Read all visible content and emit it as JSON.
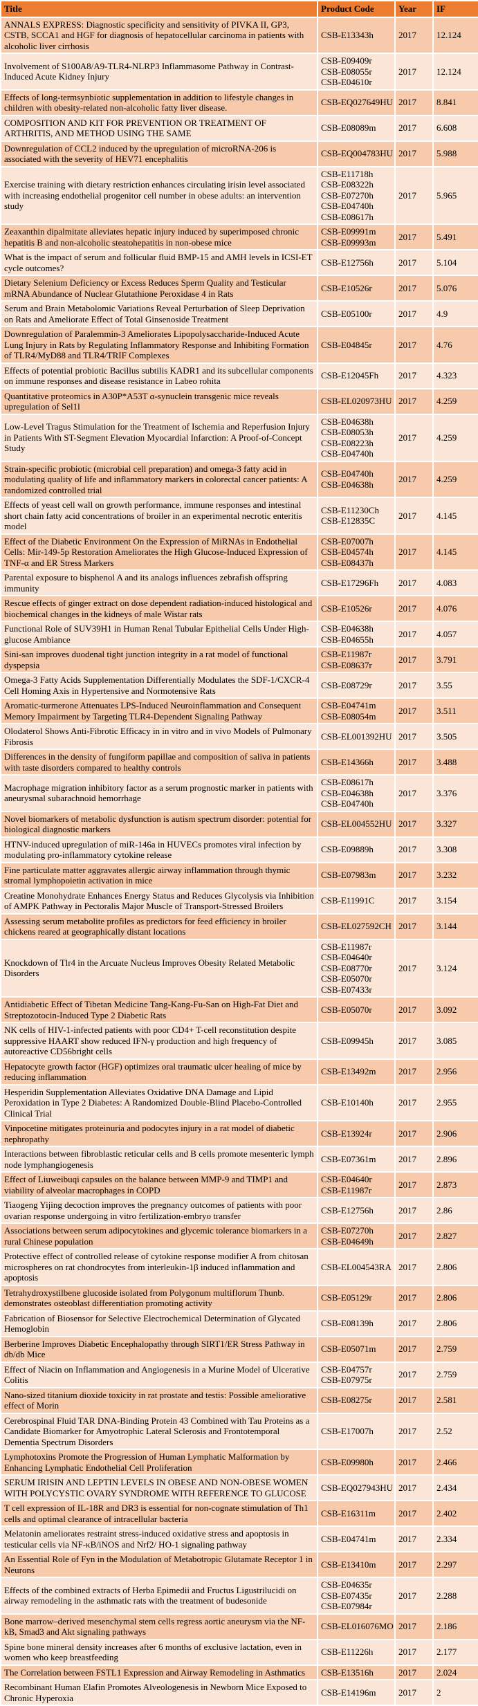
{
  "colors": {
    "header_bg": "#ED7D31",
    "row_odd_bg": "#F7CAAC",
    "row_even_bg": "#FBE5D6",
    "grid": "#FFFFFF",
    "text": "#000000"
  },
  "table": {
    "columns": [
      "Title",
      "Product Code",
      "Year",
      "IF"
    ],
    "rows": [
      {
        "title": "ANNALS EXPRESS: Diagnostic specificity and sensitivity of PIVKA II, GP3, CSTB, SCCA1 and HGF for diagnosis of hepatocellular carcinoma in patients with alcoholic liver cirrhosis",
        "codes": [
          "CSB-E13343h"
        ],
        "year": "2017",
        "if": "12.124"
      },
      {
        "title": "Involvement of S100A8/A9-TLR4-NLRP3 Inflammasome Pathway in Contrast-Induced Acute Kidney Injury",
        "codes": [
          "CSB-E09409r",
          "CSB-E08055r",
          "CSB-E04610r"
        ],
        "year": "2017",
        "if": "12.124"
      },
      {
        "title": "Effects of long-termsynbiotic supplementation in addition to lifestyle changes in children with obesity-related non-alcoholic fatty liver disease.",
        "codes": [
          "CSB-EQ027649HU"
        ],
        "year": "2017",
        "if": "8.841"
      },
      {
        "title": "COMPOSITION AND KIT FOR PREVENTION OR TREATMENT OF ARTHRITIS, AND METHOD USING THE SAME",
        "codes": [
          "CSB-E08089m"
        ],
        "year": "2017",
        "if": "6.608"
      },
      {
        "title": "Downregulation of CCL2 induced by the upregulation of microRNA-206 is associated with the severity of HEV71 encephalitis",
        "codes": [
          "CSB-EQ004783HU"
        ],
        "year": "2017",
        "if": "5.988"
      },
      {
        "title": "Exercise training with dietary restriction enhances circulating irisin level associated with increasing endothelial progenitor cell number in obese adults: an intervention study",
        "codes": [
          "CSB-E11718h",
          "CSB-E08322h",
          "CSB-E07270h",
          "CSB-E04740h",
          "CSB-E08617h"
        ],
        "year": "2017",
        "if": "5.965"
      },
      {
        "title": "Zeaxanthin dipalmitate alleviates hepatic injury induced by superimposed chronic hepatitis B and non-alcoholic steatohepatitis in non-obese mice",
        "codes": [
          "CSB-E09991m",
          "CSB-E09993m"
        ],
        "year": "2017",
        "if": "5.491"
      },
      {
        "title": "What is the impact of serum and follicular fluid BMP-15 and AMH levels in ICSI-ET cycle outcomes?",
        "codes": [
          "CSB-E12756h"
        ],
        "year": "2017",
        "if": "5.104"
      },
      {
        "title": "Dietary Selenium Deficiency or Excess Reduces Sperm Quality and Testicular mRNA Abundance of Nuclear Glutathione Peroxidase 4 in Rats",
        "codes": [
          "CSB-E10526r"
        ],
        "year": "2017",
        "if": "5.076"
      },
      {
        "title": "Serum and Brain Metabolomic Variations Reveal Perturbation of Sleep Deprivation on Rats and Ameliorate Effect of Total Ginsenoside Treatment",
        "codes": [
          "CSB-E05100r"
        ],
        "year": "2017",
        "if": "4.9"
      },
      {
        "title": "Downregulation of Paralemmin-3 Ameliorates Lipopolysaccharide-Induced Acute Lung Injury in Rats by Regulating Inflammatory Response and Inhibiting Formation of TLR4/MyD88 and TLR4/TRIF Complexes",
        "codes": [
          "CSB-E04845r"
        ],
        "year": "2017",
        "if": "4.76"
      },
      {
        "title": "Effects of potential probiotic Bacillus subtilis KADR1 and its subcellular components on immune responses and disease resistance in Labeo rohita",
        "codes": [
          "CSB-E12045Fh"
        ],
        "year": "2017",
        "if": "4.323"
      },
      {
        "title": "Quantitative proteomics in A30P*A53T α-synuclein transgenic mice reveals upregulation of Sel1l",
        "codes": [
          "CSB-EL020973HU"
        ],
        "year": "2017",
        "if": "4.259"
      },
      {
        "title": "Low-Level Tragus Stimulation for the Treatment of Ischemia and Reperfusion Injury in Patients With ST-Segment Elevation Myocardial Infarction: A Proof-of-Concept Study",
        "codes": [
          "CSB-E04638h",
          "CSB-E08053h",
          "CSB-E08223h",
          "CSB-E04740h"
        ],
        "year": "2017",
        "if": "4.259"
      },
      {
        "title": "Strain-specific probiotic (microbial cell preparation) and omega-3 fatty acid in modulating quality of life and inflammatory markers in colorectal cancer patients: A randomized controlled trial",
        "codes": [
          "CSB-E04740h",
          "CSB-E04638h"
        ],
        "year": "2017",
        "if": "4.259"
      },
      {
        "title": "Effects of yeast cell wall on growth performance, immune responses and intestinal short chain fatty acid concentrations of broiler in an experimental necrotic enteritis model",
        "codes": [
          "CSB-E11230Ch",
          "CSB-E12835C"
        ],
        "year": "2017",
        "if": "4.145"
      },
      {
        "title": "Effect of the Diabetic Environment On the Expression of MiRNAs in Endothelial Cells: Mir-149-5p Restoration Ameliorates the High Glucose-Induced Expression of TNF-α and ER Stress Markers",
        "codes": [
          "CSB-E07007h",
          "CSB-E04574h",
          "CSB-E08437h"
        ],
        "year": "2017",
        "if": "4.145"
      },
      {
        "title": "Parental exposure to bisphenol A and its analogs influences zebrafish offspring immunity",
        "codes": [
          "CSB-E17296Fh"
        ],
        "year": "2017",
        "if": "4.083"
      },
      {
        "title": "Rescue effects of ginger extract on dose dependent radiation-induced histological and biochemical changes in the kidneys of male Wistar rats",
        "codes": [
          "CSB-E10526r"
        ],
        "year": "2017",
        "if": "4.076"
      },
      {
        "title": "Functional Role of SUV39H1 in Human Renal Tubular Epithelial Cells Under High-glucose Ambiance",
        "codes": [
          "CSB-E04638h",
          "CSB-E04655h"
        ],
        "year": "2017",
        "if": "4.057"
      },
      {
        "title": "Sini-san improves duodenal tight junction integrity in a rat model of functional dyspepsia",
        "codes": [
          "CSB-E11987r",
          "CSB-E08637r"
        ],
        "year": "2017",
        "if": "3.791"
      },
      {
        "title": "Omega-3 Fatty Acids Supplementation Differentially Modulates the SDF-1/CXCR-4 Cell Homing Axis in Hypertensive and Normotensive Rats",
        "codes": [
          "CSB-E08729r"
        ],
        "year": "2017",
        "if": "3.55"
      },
      {
        "title": "Aromatic-turmerone Attenuates LPS-Induced Neuroinflammation and Consequent Memory Impairment by Targeting TLR4-Dependent Signaling Pathway",
        "codes": [
          "CSB-E04741m",
          "CSB-E08054m"
        ],
        "year": "2017",
        "if": "3.511"
      },
      {
        "title": "Olodaterol Shows Anti-Fibrotic Efficacy in in vitro and in vivo Models of Pulmonary Fibrosis",
        "codes": [
          "CSB-EL001392HU"
        ],
        "year": "2017",
        "if": "3.505"
      },
      {
        "title": "Differences in the density of fungiform papillae and composition of saliva in patients with taste disorders compared to healthy controls",
        "codes": [
          "CSB-E14366h"
        ],
        "year": "2017",
        "if": "3.488"
      },
      {
        "title": "Macrophage migration inhibitory factor as a serum prognostic marker in patients with aneurysmal subarachnoid hemorrhage",
        "codes": [
          "CSB-E08617h",
          "CSB-E04638h",
          "CSB-E04740h"
        ],
        "year": "2017",
        "if": "3.376"
      },
      {
        "title": "Novel biomarkers of metabolic dysfunction is autism spectrum disorder: potential for biological diagnostic markers",
        "codes": [
          "CSB-EL004552HU"
        ],
        "year": "2017",
        "if": "3.327"
      },
      {
        "title": "HTNV-induced upregulation of miR-146a in HUVECs promotes viral infection by modulating pro-inflammatory cytokine release",
        "codes": [
          "CSB-E09889h"
        ],
        "year": "2017",
        "if": "3.308"
      },
      {
        "title": "Fine particulate matter aggravates allergic airway inflammation through thymic stromal lymphopoietin activation in mice",
        "codes": [
          "CSB-E07983m"
        ],
        "year": "2017",
        "if": "3.232"
      },
      {
        "title": "Creatine Monohydrate Enhances Energy Status and Reduces Glycolysis via Inhibition of AMPK Pathway in Pectoralis Major Muscle of Transport-Stressed Broilers",
        "codes": [
          "CSB-E11991C"
        ],
        "year": "2017",
        "if": "3.154"
      },
      {
        "title": "Assessing serum metabolite profiles as predictors for feed efficiency in broiler chickens reared at geographically distant locations",
        "codes": [
          "CSB-EL027592CH"
        ],
        "year": "2017",
        "if": "3.144"
      },
      {
        "title": "Knockdown of Tlr4 in the Arcuate Nucleus Improves Obesity Related Metabolic Disorders",
        "codes": [
          "CSB-E11987r",
          "CSB-E04640r",
          "CSB-E08770r",
          "CSB-E05070r",
          "CSB-E07433r"
        ],
        "year": "2017",
        "if": "3.124"
      },
      {
        "title": "Antidiabetic Effect of Tibetan Medicine Tang-Kang-Fu-San on High-Fat Diet and Streptozotocin-Induced Type 2 Diabetic Rats",
        "codes": [
          "CSB-E05070r"
        ],
        "year": "2017",
        "if": "3.092"
      },
      {
        "title": "NK cells of HIV-1-infected patients with poor CD4+ T-cell reconstitution despite suppressive HAART show reduced IFN-γ production and high frequency of autoreactive CD56bright cells",
        "codes": [
          "CSB-E09945h"
        ],
        "year": "2017",
        "if": "3.085"
      },
      {
        "title": "Hepatocyte growth factor (HGF) optimizes oral traumatic ulcer healing of mice by reducing inflammation",
        "codes": [
          "CSB-E13492m"
        ],
        "year": "2017",
        "if": "2.956"
      },
      {
        "title": "Hesperidin Supplementation Alleviates Oxidative DNA Damage and Lipid Peroxidation in Type 2 Diabetes: A Randomized Double-Blind Placebo-Controlled Clinical Trial",
        "codes": [
          "CSB-E10140h"
        ],
        "year": "2017",
        "if": "2.955"
      },
      {
        "title": "Vinpocetine mitigates proteinuria and podocytes injury in a rat model of diabetic nephropathy",
        "codes": [
          "CSB-E13924r"
        ],
        "year": "2017",
        "if": "2.906"
      },
      {
        "title": "Interactions between fibroblastic reticular cells and B cells promote mesenteric lymph node lymphangiogenesis",
        "codes": [
          "CSB-E07361m"
        ],
        "year": "2017",
        "if": "2.896"
      },
      {
        "title": "Effect of Liuweibuqi capsules on the balance between MMP-9 and TIMP1 and viability of alveolar macrophages in COPD",
        "codes": [
          "CSB-E04640r",
          "CSB-E11987r"
        ],
        "year": "2017",
        "if": "2.873"
      },
      {
        "title": "Tiaogeng Yijing decoction improves the pregnancy outcomes of patients with poor ovarian response undergoing in vitro fertilization-embryo transfer",
        "codes": [
          "CSB-E12756h"
        ],
        "year": "2017",
        "if": "2.86"
      },
      {
        "title": "Associations between serum adipocytokines and glycemic tolerance biomarkers in a rural Chinese population",
        "codes": [
          "CSB-E07270h",
          "CSB-E04649h"
        ],
        "year": "2017",
        "if": "2.827"
      },
      {
        "title": "Protective effect of controlled release of cytokine response modifier A from chitosan microspheres on rat chondrocytes from interleukin-1β induced inflammation and apoptosis",
        "codes": [
          "CSB-EL004543RA"
        ],
        "year": "2017",
        "if": "2.806"
      },
      {
        "title": "Tetrahydroxystilbene glucoside isolated from Polygonum multiflorum Thunb. demonstrates osteoblast differentiation promoting activity",
        "codes": [
          "CSB-E05129r"
        ],
        "year": "2017",
        "if": "2.806"
      },
      {
        "title": "Fabrication of Biosensor for Selective Electrochemical Determination of Glycated Hemoglobin",
        "codes": [
          "CSB-E08139h"
        ],
        "year": "2017",
        "if": "2.806"
      },
      {
        "title": "Berberine Improves Diabetic Encephalopathy through SIRT1/ER Stress Pathway in db/db Mice",
        "codes": [
          "CSB-E05071m"
        ],
        "year": "2017",
        "if": "2.759"
      },
      {
        "title": "Effect of Niacin on Inflammation and Angiogenesis in a Murine Model of Ulcerative Colitis",
        "codes": [
          "CSB-E04757r",
          "CSB-E07975r"
        ],
        "year": "2017",
        "if": "2.759"
      },
      {
        "title": "Nano-sized titanium dioxide toxicity in rat prostate and testis: Possible ameliorative effect of Morin",
        "codes": [
          "CSB-E08275r"
        ],
        "year": "2017",
        "if": "2.581"
      },
      {
        "title": "Cerebrospinal Fluid TAR DNA-Binding Protein 43 Combined with Tau Proteins as a Candidate Biomarker for Amyotrophic Lateral Sclerosis and Frontotemporal Dementia Spectrum Disorders",
        "codes": [
          "CSB-E17007h"
        ],
        "year": "2017",
        "if": "2.52"
      },
      {
        "title": "Lymphotoxins Promote the Progression of Human Lymphatic Malformation by Enhancing Lymphatic Endothelial Cell Proliferation",
        "codes": [
          "CSB-E09980h"
        ],
        "year": "2017",
        "if": "2.466"
      },
      {
        "title": "SERUM IRISIN AND LEPTIN LEVELS IN OBESE AND NON-OBESE WOMEN WITH POLYCYSTIC OVARY SYNDROME WITH REFERENCE TO GLUCOSE",
        "codes": [
          "CSB-EQ027943HU"
        ],
        "year": "2017",
        "if": "2.434"
      },
      {
        "title": "T cell expression of IL-18R and DR3 is essential for non-cognate stimulation of Th1 cells and optimal clearance of intracellular bacteria",
        "codes": [
          "CSB-E16311m"
        ],
        "year": "2017",
        "if": "2.402"
      },
      {
        "title": "Melatonin ameliorates restraint stress-induced oxidative stress and apoptosis in testicular cells via NF-κB/iNOS and Nrf2/ HO-1 signaling pathway",
        "codes": [
          "CSB-E04741m"
        ],
        "year": "2017",
        "if": "2.334"
      },
      {
        "title": "An Essential Role of Fyn in the Modulation of Metabotropic Glutamate Receptor 1 in Neurons",
        "codes": [
          "CSB-E13410m"
        ],
        "year": "2017",
        "if": "2.297"
      },
      {
        "title": "Effects of the combined extracts of Herba Epimedii and Fructus Ligustrilucidi on airway remodeling in the asthmatic rats with the treatment of budesonide",
        "codes": [
          "CSB-E04635r",
          "CSB-E07435r",
          "CSB-E07984r"
        ],
        "year": "2017",
        "if": "2.288"
      },
      {
        "title": "Bone marrow–derived mesenchymal stem cells regress aortic aneurysm via the NF-kB, Smad3 and Akt signaling pathways",
        "codes": [
          "CSB-EL016076MO"
        ],
        "year": "2017",
        "if": "2.186"
      },
      {
        "title": "Spine bone mineral density increases after 6 months of exclusive lactation, even in women who keep breastfeeding",
        "codes": [
          "CSB-E11226h"
        ],
        "year": "2017",
        "if": "2.177"
      },
      {
        "title": "The Correlation between FSTL1 Expression and Airway Remodeling in Asthmatics",
        "codes": [
          "CSB-E13516h"
        ],
        "year": "2017",
        "if": "2.024"
      },
      {
        "title": "Recombinant Human Elafin Promotes Alveologenesis in Newborn Mice Exposed to Chronic Hyperoxia",
        "codes": [
          "CSB-E14196m"
        ],
        "year": "2017",
        "if": "2"
      }
    ]
  }
}
